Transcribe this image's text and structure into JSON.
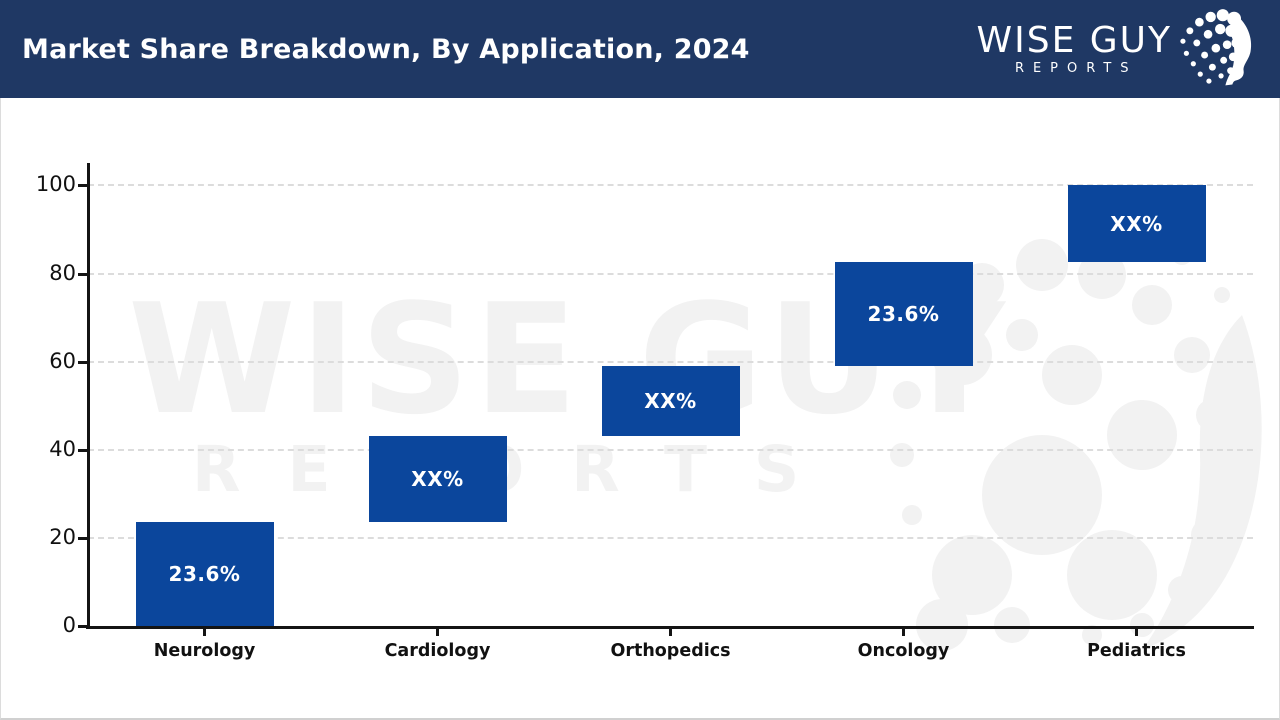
{
  "header": {
    "title": "Market Share Breakdown, By Application, 2024",
    "bg_color": "#1f3864",
    "logo": {
      "line1": "WISE GUY",
      "line2": "REPORTS"
    }
  },
  "watermark": {
    "line1": "WISE GUY",
    "line2": "REPORTS"
  },
  "chart_data": {
    "type": "bar",
    "subtype": "waterfall",
    "title": "Market Share Breakdown, By Application, 2024",
    "xlabel": "",
    "ylabel": "",
    "categories": [
      "Neurology",
      "Cardiology",
      "Orthopedics",
      "Oncology",
      "Pediatrics"
    ],
    "segments": [
      {
        "category": "Neurology",
        "start": 0,
        "end": 23.6,
        "label": "23.6%"
      },
      {
        "category": "Cardiology",
        "start": 23.6,
        "end": 43.2,
        "label": "XX%"
      },
      {
        "category": "Orthopedics",
        "start": 43.2,
        "end": 59.0,
        "label": "XX%"
      },
      {
        "category": "Oncology",
        "start": 59.0,
        "end": 82.6,
        "label": "23.6%"
      },
      {
        "category": "Pediatrics",
        "start": 82.6,
        "end": 100.0,
        "label": "XX%"
      }
    ],
    "yticks": [
      0,
      20,
      40,
      60,
      80,
      100
    ],
    "ylim": [
      0,
      105
    ],
    "grid": "horizontal-dashed",
    "legend": "none",
    "bar_color": "#0b469c",
    "bar_label_color": "#ffffff",
    "grid_color": "#dcdcdc",
    "axis_color": "#141414"
  }
}
